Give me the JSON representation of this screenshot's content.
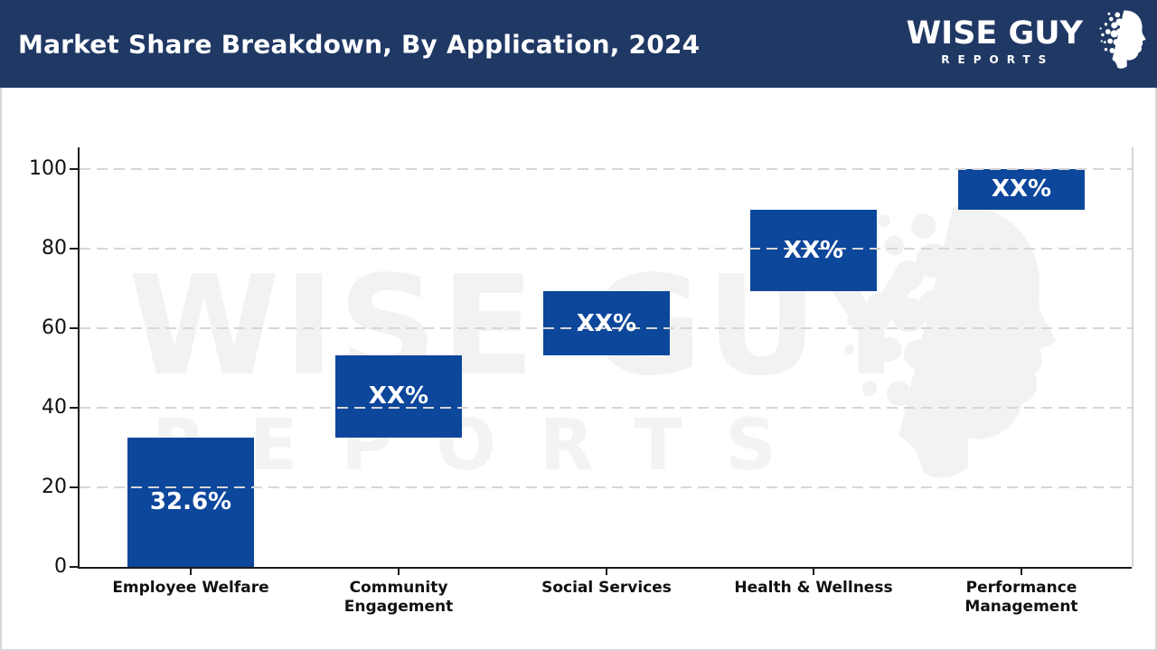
{
  "header": {
    "title": "Market Share Breakdown, By Application, 2024",
    "logo": {
      "line1": "WISE GUY",
      "line2": "REPORTS"
    }
  },
  "watermark": {
    "line1": "WISE GUY",
    "line2": "REPORTS"
  },
  "chart_data": {
    "type": "bar",
    "subtype": "floating-waterfall",
    "title": "Market Share Breakdown, By Application, 2024",
    "categories": [
      "Employee Welfare",
      "Community Engagement",
      "Social Services",
      "Health & Wellness",
      "Performance Management"
    ],
    "category_lines": [
      [
        "Employee Welfare"
      ],
      [
        "Community",
        "Engagement"
      ],
      [
        "Social Services"
      ],
      [
        "Health & Wellness"
      ],
      [
        "Performance",
        "Management"
      ]
    ],
    "segments": [
      {
        "category": "Employee Welfare",
        "start": 0,
        "end": 32.6,
        "value": 32.6,
        "label": "32.6%"
      },
      {
        "category": "Community Engagement",
        "start": 32.6,
        "end": 53.2,
        "value": 20.6,
        "label": "XX%"
      },
      {
        "category": "Social Services",
        "start": 53.2,
        "end": 69.3,
        "value": 16.1,
        "label": "XX%"
      },
      {
        "category": "Health & Wellness",
        "start": 69.3,
        "end": 89.8,
        "value": 20.5,
        "label": "XX%"
      },
      {
        "category": "Performance Management",
        "start": 89.8,
        "end": 100,
        "value": 10.2,
        "label": "XX%"
      }
    ],
    "yticks": [
      0,
      20,
      40,
      60,
      80,
      100
    ],
    "gridline_values": [
      20,
      40,
      60,
      80,
      100
    ],
    "ylim": [
      0,
      105.5
    ],
    "grid": true,
    "grid_style": "dashed",
    "legend": "none",
    "colors": {
      "bar": "#0d479c",
      "header_bg": "#203864",
      "grid": "#d6d6d6",
      "axis": "#1a1a1a",
      "watermark": "#f2f2f2",
      "label_text": "#ffffff"
    }
  }
}
